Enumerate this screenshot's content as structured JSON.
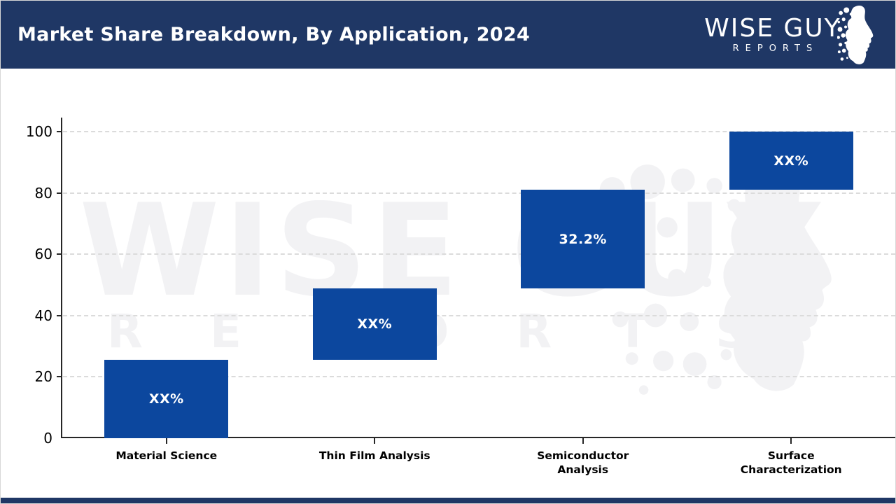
{
  "header": {
    "title": "Market Share Breakdown, By Application, 2024",
    "logo": {
      "line1": "WISE GUY",
      "line2": "REPORTS"
    }
  },
  "watermark": {
    "line1": "WISE GUY",
    "line2": "REPORTS"
  },
  "colors": {
    "header_bg": "#1f3765",
    "bar": "#0c479e",
    "grid": "#dbdbdb",
    "axis": "#262626",
    "watermark": "#f2f2f4",
    "bar_label": "#ffffff"
  },
  "chart_data": {
    "type": "bar",
    "subtype": "floating-segment breakdown (waterfall-style, segments sum to 100%)",
    "title": "Market Share Breakdown, By Application, 2024",
    "categories": [
      "Material Science",
      "Thin Film Analysis",
      "Semiconductor Analysis",
      "Surface Characterization"
    ],
    "category_label_lines": [
      [
        "Material Science"
      ],
      [
        "Thin Film Analysis"
      ],
      [
        "Semiconductor",
        "Analysis"
      ],
      [
        "Surface",
        "Characterization"
      ]
    ],
    "segments": [
      {
        "category": "Material Science",
        "start": 0,
        "end": 25.6,
        "share": "XX",
        "label": "XX%"
      },
      {
        "category": "Thin Film Analysis",
        "start": 25.6,
        "end": 48.8,
        "share": "XX",
        "label": "XX%"
      },
      {
        "category": "Semiconductor Analysis",
        "start": 48.8,
        "end": 81.0,
        "share": 32.2,
        "label": "32.2%"
      },
      {
        "category": "Surface Characterization",
        "start": 81.0,
        "end": 100,
        "share": "XX",
        "label": "XX%"
      }
    ],
    "yticks": [
      0,
      20,
      40,
      60,
      80,
      100
    ],
    "ylim": [
      0,
      105
    ],
    "xlabel": "",
    "ylabel": "",
    "grid": "horizontal dashed",
    "legend": "none"
  }
}
